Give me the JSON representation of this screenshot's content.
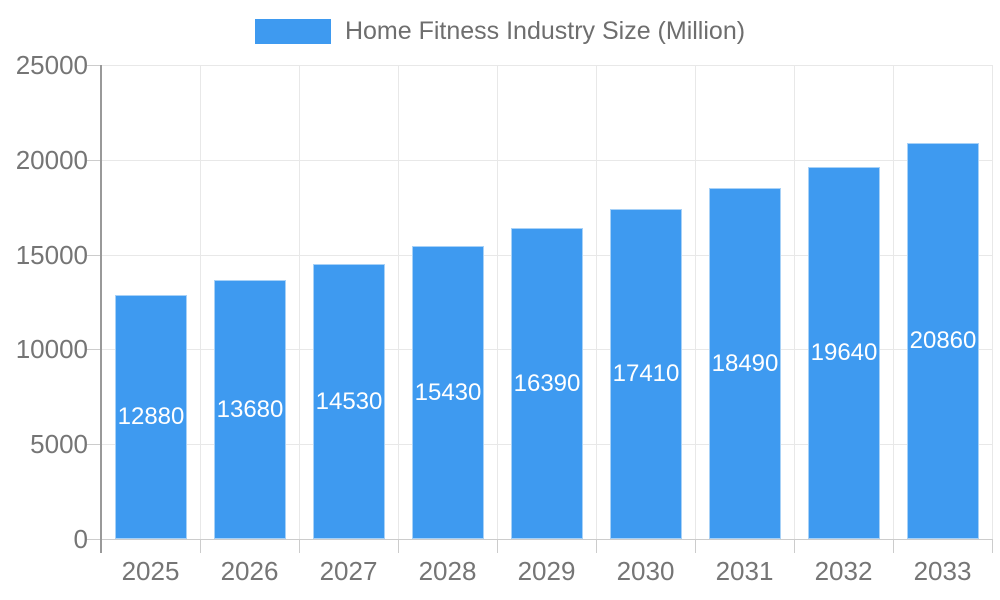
{
  "chart_data": {
    "type": "bar",
    "title": "",
    "legend_label": "Home Fitness Industry Size (Million)",
    "legend_position": "top",
    "categories": [
      "2025",
      "2026",
      "2027",
      "2028",
      "2029",
      "2030",
      "2031",
      "2032",
      "2033"
    ],
    "series": [
      {
        "name": "Home Fitness Industry Size (Million)",
        "values": [
          12880,
          13680,
          14530,
          15430,
          16390,
          17410,
          18490,
          19640,
          20860
        ]
      }
    ],
    "value_labels_shown": true,
    "xlabel": "",
    "ylabel": "",
    "ylim": [
      0,
      25000
    ],
    "ytick_step": 5000,
    "yticks": [
      0,
      5000,
      10000,
      15000,
      20000,
      25000
    ],
    "grid": true,
    "colors": {
      "bar_fill": "#3E9AF0",
      "bar_edge": "#a7d1f7",
      "value_label": "#ffffff",
      "axis_line": "#999999",
      "tick_mark": "#cccccc",
      "baseline": "#cccccc",
      "gridline": "#e8e8e8",
      "tick_text": "#757575",
      "legend_text": "#6e6e6e"
    }
  }
}
